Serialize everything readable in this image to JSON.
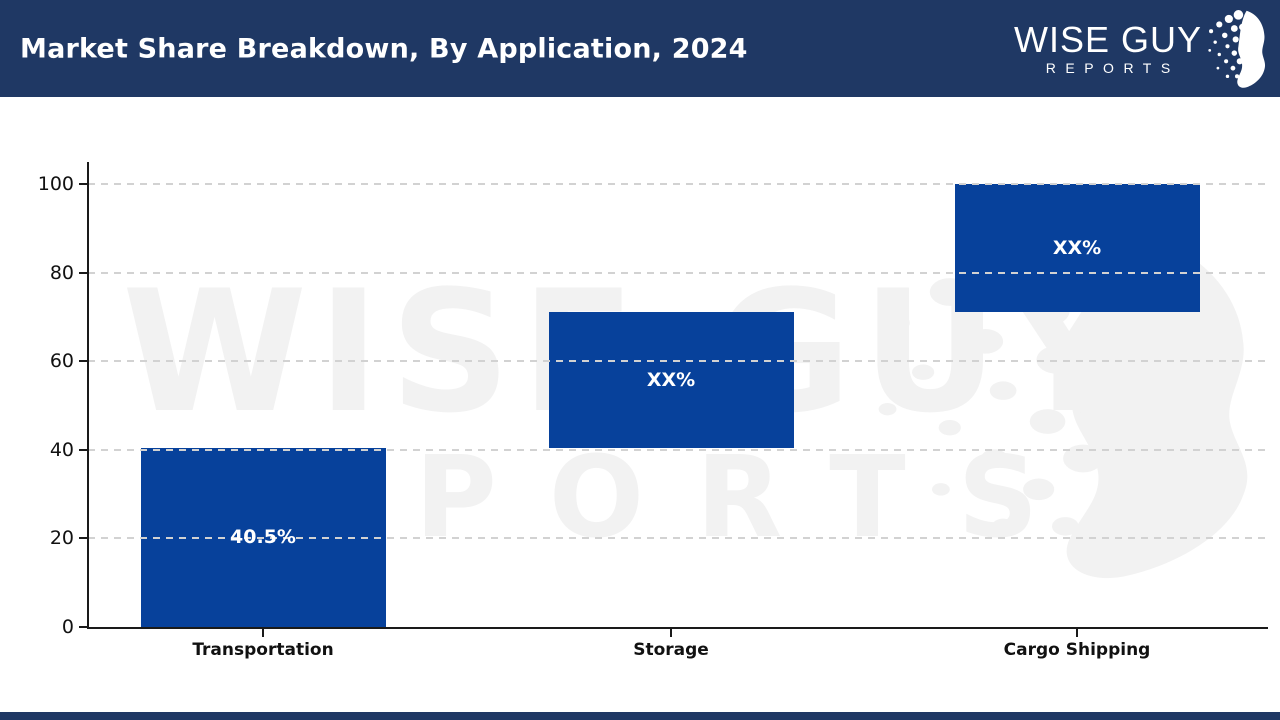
{
  "header": {
    "title": "Market Share Breakdown, By Application, 2024",
    "bg_color": "#1f3864",
    "logo": {
      "line1": "WISE GUY",
      "line2": "REPORTS"
    }
  },
  "watermark": {
    "line1": "WISE GUY",
    "line2": "REPORTS"
  },
  "chart_data": {
    "type": "bar",
    "subtype": "waterfall",
    "title": "Market Share Breakdown, By Application, 2024",
    "categories": [
      "Transportation",
      "Storage",
      "Cargo Shipping"
    ],
    "segments": [
      {
        "category": "Transportation",
        "start": 0,
        "end": 40.5,
        "label": "40.5%"
      },
      {
        "category": "Storage",
        "start": 40.5,
        "end": 71,
        "label": "XX%"
      },
      {
        "category": "Cargo Shipping",
        "start": 71,
        "end": 100,
        "label": "XX%"
      }
    ],
    "yticks": [
      0,
      20,
      40,
      60,
      80,
      100
    ],
    "ylim": [
      0,
      105
    ],
    "xlabel": "",
    "ylabel": "",
    "grid": true,
    "grid_style": "dashed",
    "legend": "none",
    "bar_color": "#07419b",
    "bar_label_color": "#ffffff",
    "axis_color": "#1a1a1a",
    "grid_color": "#d2d2d2",
    "watermark_color": "#f2f2f2"
  }
}
